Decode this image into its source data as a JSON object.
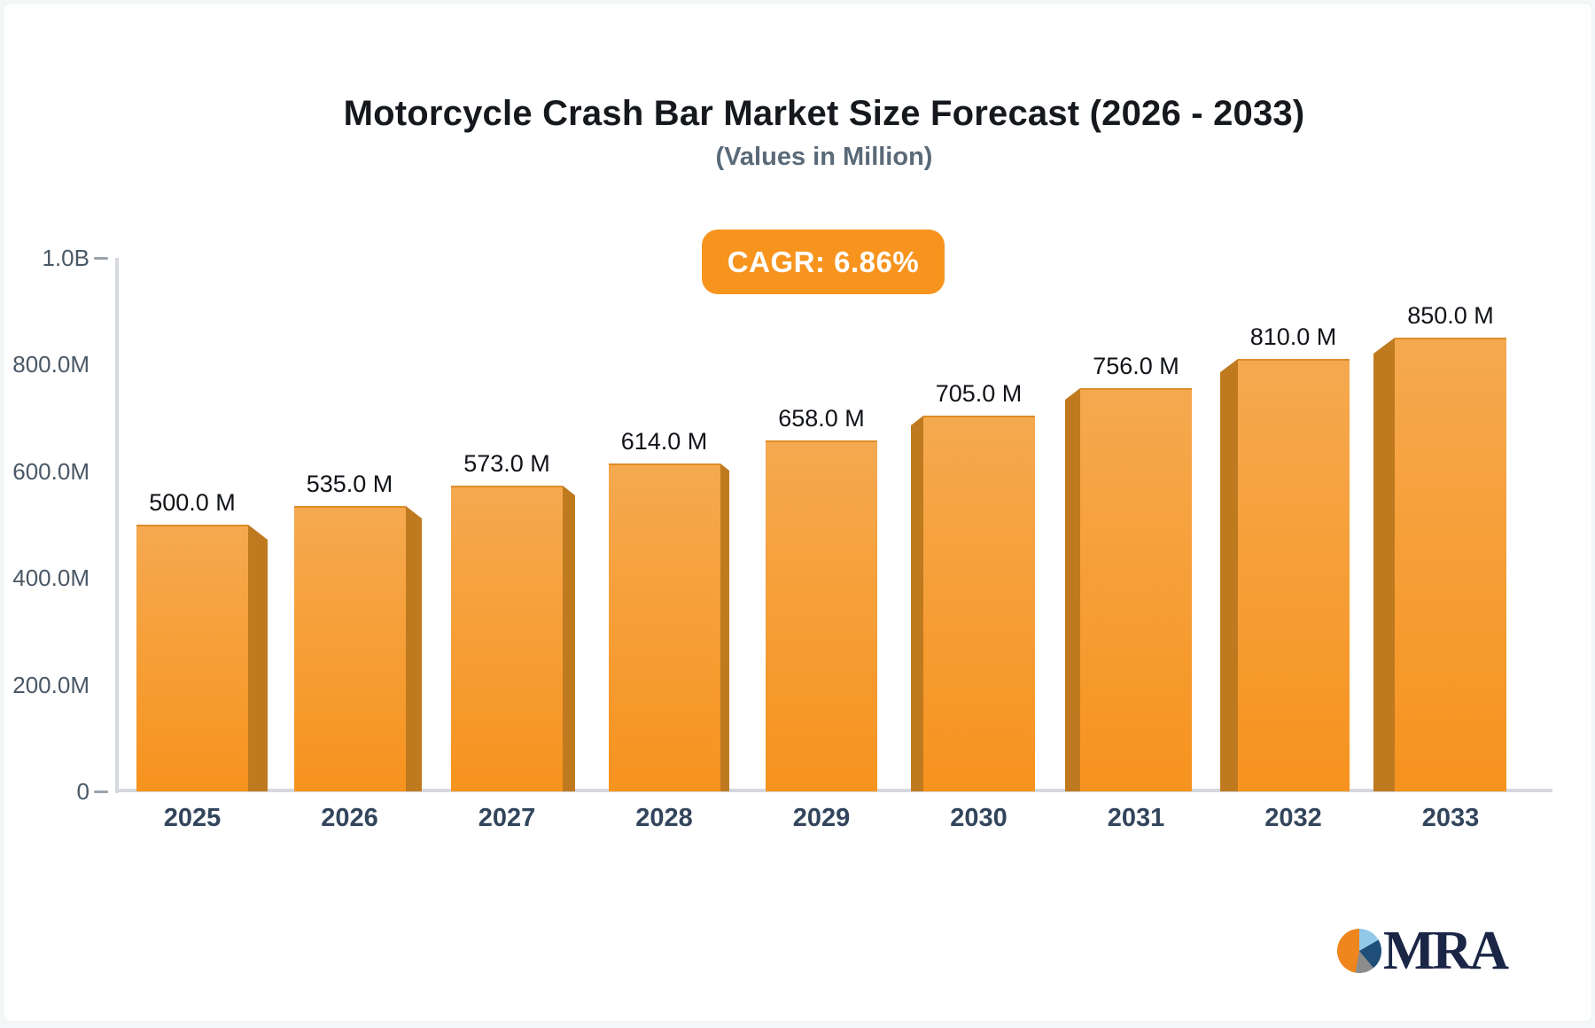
{
  "header": {
    "title": "Motorcycle Crash Bar Market Size Forecast (2026 - 2033)",
    "subtitle": "(Values in Million)",
    "cagr_badge": "CAGR: 6.86%"
  },
  "chart_data": {
    "type": "bar",
    "style": "3d-perspective-bars",
    "title": "Motorcycle Crash Bar Market Size Forecast (2026 - 2033)",
    "subtitle": "(Values in Million)",
    "annotation": "CAGR: 6.86%",
    "categories": [
      "2025",
      "2026",
      "2027",
      "2028",
      "2029",
      "2030",
      "2031",
      "2032",
      "2033"
    ],
    "values": [
      500,
      535,
      573,
      614,
      658,
      705,
      756,
      810,
      850
    ],
    "value_labels": [
      "500.0 M",
      "535.0 M",
      "573.0 M",
      "614.0 M",
      "658.0 M",
      "705.0 M",
      "756.0 M",
      "810.0 M",
      "850.0 M"
    ],
    "unit": "Million",
    "ylim": [
      0,
      1000
    ],
    "y_ticks": [
      {
        "label": "1.0B",
        "value": 1000,
        "dash": true
      },
      {
        "label": "800.0M",
        "value": 800,
        "dash": false
      },
      {
        "label": "600.0M",
        "value": 600,
        "dash": false
      },
      {
        "label": "400.0M",
        "value": 400,
        "dash": false
      },
      {
        "label": "200.0M",
        "value": 200,
        "dash": false
      },
      {
        "label": "0",
        "value": 0,
        "dash": true
      }
    ],
    "grid": false,
    "legend": false
  },
  "colors": {
    "bar_top": "#F5A94F",
    "bar_bottom": "#F7931E",
    "bar_edge": "#DE8C29",
    "bar_side": "#BF7A20",
    "badge_bg": "#F7941E",
    "badge_text": "#FFFFFF",
    "title": "#15181C",
    "subtitle": "#5A6A78",
    "axis_line": "#D5D9DE",
    "tick_dash": "#98A2AC",
    "y_label": "#4A5866",
    "x_label": "#32455C",
    "value_label": "#101318"
  },
  "logo": {
    "text": "MRA",
    "text_color": "#1B2646",
    "pie_colors": {
      "light_blue": "#92C9E9",
      "navy": "#1F4E79",
      "gray": "#8C8C8C",
      "orange": "#EF861D"
    }
  }
}
